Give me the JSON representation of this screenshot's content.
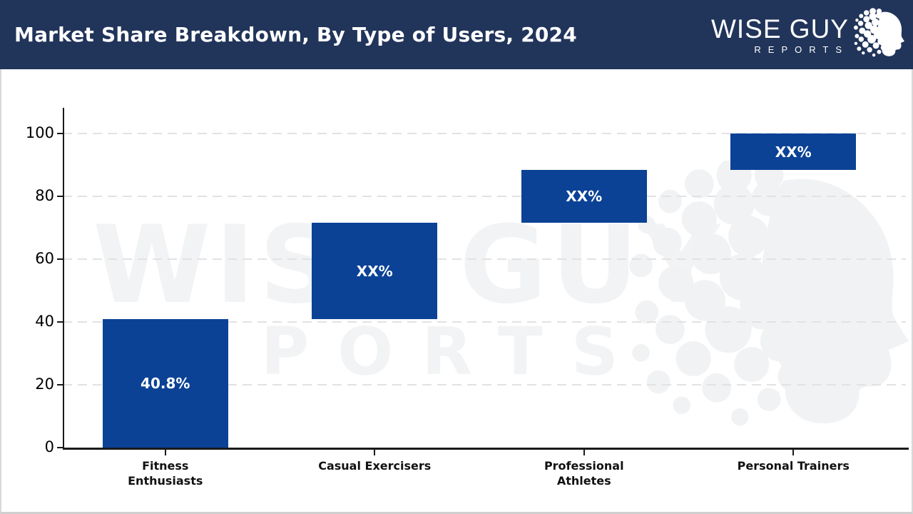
{
  "header": {
    "title": "Market Share Breakdown, By Type of Users, 2024",
    "logo": {
      "line1": "WISE GUY",
      "line2": "REPORTS"
    }
  },
  "watermark": {
    "line1": "WISE GUY",
    "line2": "REPORTS"
  },
  "chart_data": {
    "type": "bar",
    "subtype": "waterfall",
    "title": "Market Share Breakdown, By Type of Users, 2024",
    "categories": [
      "Fitness\nEnthusiasts",
      "Casual Exercisers",
      "Professional\nAthletes",
      "Personal Trainers"
    ],
    "bars": [
      {
        "category": "Fitness\nEnthusiasts",
        "base": 0,
        "top": 40.8,
        "label": "40.8%"
      },
      {
        "category": "Casual Exercisers",
        "base": 40.8,
        "top": 71.6,
        "label": "XX%"
      },
      {
        "category": "Professional\nAthletes",
        "base": 71.6,
        "top": 88.4,
        "label": "XX%"
      },
      {
        "category": "Personal Trainers",
        "base": 88.4,
        "top": 100,
        "label": "XX%"
      }
    ],
    "yticks": [
      0,
      20,
      40,
      60,
      80,
      100
    ],
    "ylim": [
      0,
      108
    ],
    "grid": true,
    "legend": false,
    "xlabel": "",
    "ylabel": "",
    "bar_color": "#0B4296",
    "bar_label_color": "#FFFFFF",
    "header_color": "#21345A",
    "grid_color": "#E2E2E2",
    "axis_color": "#1A1A1A"
  }
}
